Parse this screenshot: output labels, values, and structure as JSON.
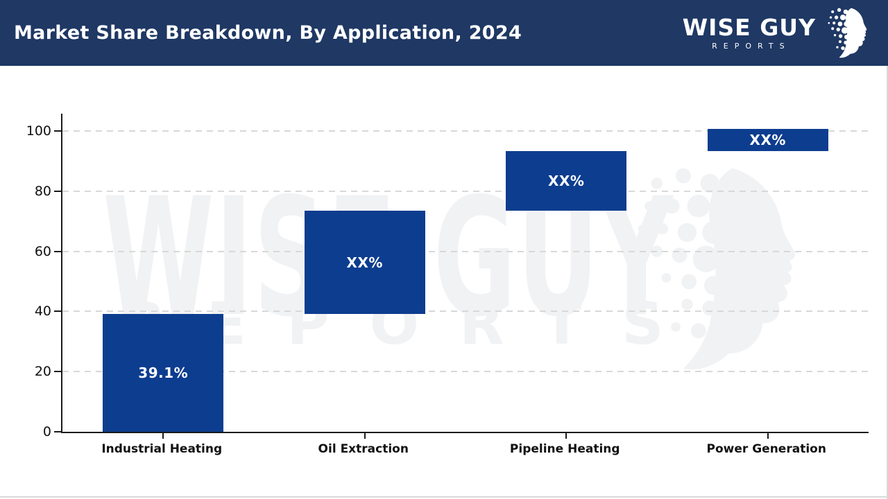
{
  "header": {
    "title": "Market Share Breakdown, By Application, 2024",
    "bg_color": "#1f3864",
    "logo": {
      "line1": "WISE GUY",
      "line2": "REPORTS"
    }
  },
  "watermark": {
    "line1": "WISE GUY",
    "line2": "REPORTS"
  },
  "chart_data": {
    "type": "bar",
    "subtype": "waterfall",
    "title": "Market Share Breakdown, By Application, 2024",
    "categories": [
      "Industrial Heating",
      "Oil Extraction",
      "Pipeline Heating",
      "Power Generation"
    ],
    "segments": [
      {
        "category": "Industrial Heating",
        "start": 0,
        "end": 39.1,
        "label": "39.1%"
      },
      {
        "category": "Oil Extraction",
        "start": 39.1,
        "end": 73.5,
        "label": "XX%"
      },
      {
        "category": "Pipeline Heating",
        "start": 73.5,
        "end": 93.3,
        "label": "XX%"
      },
      {
        "category": "Power Generation",
        "start": 93.3,
        "end": 100.8,
        "label": "XX%"
      }
    ],
    "xlabel": "",
    "ylabel": "",
    "ylim": [
      0,
      105.8
    ],
    "yticks": [
      0,
      20,
      40,
      60,
      80,
      100
    ],
    "grid": "horizontal-dashed",
    "legend": "none",
    "bar_color": "#0d3d8f",
    "bar_label_color": "#ffffff",
    "gridline_color": "#d8d8d8",
    "axis_color": "#1a1a1a"
  }
}
